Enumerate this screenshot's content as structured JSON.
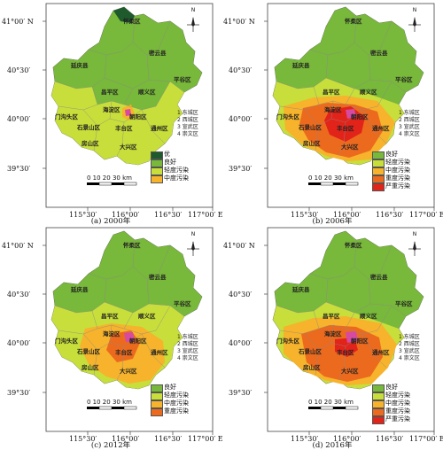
{
  "axis": {
    "lat": [
      "41°00′ N",
      "40°30′",
      "40°00′",
      "39°30′"
    ],
    "lon": [
      "115°30′",
      "116°00′",
      "116°30′",
      "117°00′ E"
    ]
  },
  "districts": {
    "huairou": "怀柔区",
    "miyun": "密云县",
    "yanqing": "延庆县",
    "pinggu": "平谷区",
    "changping": "昌平区",
    "shunyi": "顺义区",
    "haidian": "海淀区",
    "mentougou": "门沟头区",
    "chaoyang": "朝阳区",
    "shijingshan": "石景山区",
    "fengtai": "丰台区",
    "tongzhou": "通州区",
    "fangshan": "房山区",
    "daxing": "大兴区"
  },
  "core_key": [
    "1 东城区",
    "2 西城区",
    "3 宣武区",
    "4 崇文区"
  ],
  "north_label": "N",
  "scale_label": "0  10  20  30 km",
  "colors": {
    "excellent": "#1e5a2b",
    "good": "#78b83a",
    "light": "#c8de3a",
    "moderate": "#f6b32b",
    "heavy": "#ec6a1e",
    "severe": "#e2231a",
    "hotspot": "#d64aa2"
  },
  "panels": [
    {
      "caption": "(a) 2000年",
      "legend": [
        {
          "label": "优",
          "color": "#1e5a2b"
        },
        {
          "label": "良好",
          "color": "#78b83a"
        },
        {
          "label": "轻度污染",
          "color": "#c8de3a"
        },
        {
          "label": "中度污染",
          "color": "#f6b32b"
        }
      ]
    },
    {
      "caption": "(b) 2006年",
      "legend": [
        {
          "label": "良好",
          "color": "#78b83a"
        },
        {
          "label": "轻度污染",
          "color": "#c8de3a"
        },
        {
          "label": "中度污染",
          "color": "#f6b32b"
        },
        {
          "label": "重度污染",
          "color": "#ec6a1e"
        },
        {
          "label": "严重污染",
          "color": "#e2231a"
        }
      ]
    },
    {
      "caption": "(c) 2012年",
      "legend": [
        {
          "label": "良好",
          "color": "#78b83a"
        },
        {
          "label": "轻度污染",
          "color": "#c8de3a"
        },
        {
          "label": "中度污染",
          "color": "#f6b32b"
        },
        {
          "label": "重度污染",
          "color": "#ec6a1e"
        }
      ]
    },
    {
      "caption": "(d) 2016年",
      "legend": [
        {
          "label": "良好",
          "color": "#78b83a"
        },
        {
          "label": "轻度污染",
          "color": "#c8de3a"
        },
        {
          "label": "中度污染",
          "color": "#f6b32b"
        },
        {
          "label": "重度污染",
          "color": "#ec6a1e"
        },
        {
          "label": "严重污染",
          "color": "#e2231a"
        }
      ]
    }
  ]
}
